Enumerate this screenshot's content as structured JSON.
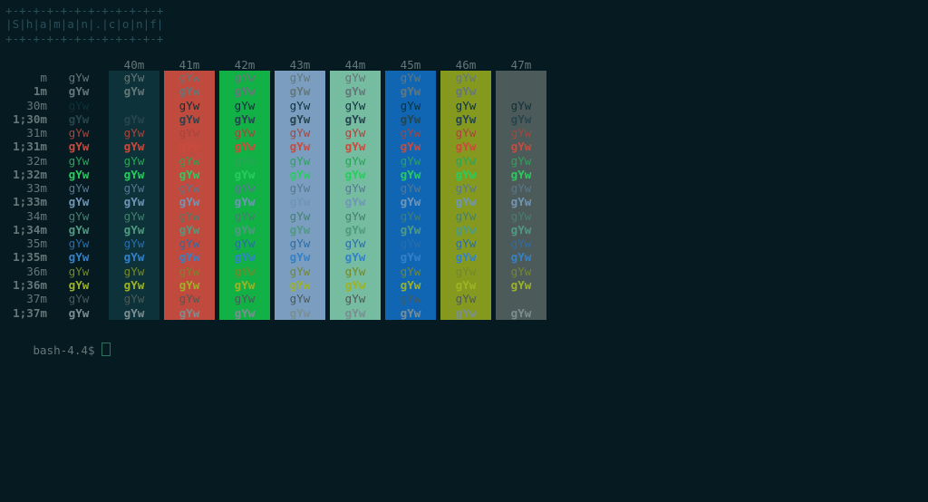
{
  "terminal": {
    "background": "#051a21",
    "banner": {
      "color": "#2a4f58",
      "lines": [
        "+-+-+-+-+-+-+-+-+-+-+-+",
        "|S|h|a|m|a|n|.|c|o|n|f|",
        "+-+-+-+-+-+-+-+-+-+-+-+"
      ]
    },
    "color_table": {
      "cell_text": "gYw",
      "header_color": "#647779",
      "label_color": "#647779",
      "columns": [
        {
          "code": "",
          "bg": ""
        },
        {
          "code": "40m",
          "bg": "#0d323a"
        },
        {
          "code": "41m",
          "bg": "#c04a3e"
        },
        {
          "code": "42m",
          "bg": "#12b146"
        },
        {
          "code": "43m",
          "bg": "#7b9ec0"
        },
        {
          "code": "44m",
          "bg": "#75bca0"
        },
        {
          "code": "45m",
          "bg": "#1166b4"
        },
        {
          "code": "46m",
          "bg": "#85991f"
        },
        {
          "code": "47m",
          "bg": "#4c5a59"
        }
      ],
      "rows": [
        {
          "code": "m",
          "fg": "#647779",
          "bold": false
        },
        {
          "code": "1m",
          "fg": "#647779",
          "bold": true
        },
        {
          "code": "30m",
          "fg": "#0d323a",
          "bold": false
        },
        {
          "code": "1;30m",
          "fg": "#27454e",
          "bold": true
        },
        {
          "code": "31m",
          "fg": "#a7453d",
          "bold": false
        },
        {
          "code": "1;31m",
          "fg": "#cb4a3c",
          "bold": true
        },
        {
          "code": "32m",
          "fg": "#2aa458",
          "bold": false
        },
        {
          "code": "1;32m",
          "fg": "#27cd5d",
          "bold": true
        },
        {
          "code": "33m",
          "fg": "#56788f",
          "bold": false
        },
        {
          "code": "1;33m",
          "fg": "#6f96b5",
          "bold": true
        },
        {
          "code": "34m",
          "fg": "#43806e",
          "bold": false
        },
        {
          "code": "1;34m",
          "fg": "#4f9a80",
          "bold": true
        },
        {
          "code": "35m",
          "fg": "#2a6da8",
          "bold": false
        },
        {
          "code": "1;35m",
          "fg": "#3381c8",
          "bold": true
        },
        {
          "code": "36m",
          "fg": "#74882a",
          "bold": false
        },
        {
          "code": "1;36m",
          "fg": "#9db324",
          "bold": true
        },
        {
          "code": "37m",
          "fg": "#4c5a59",
          "bold": false
        },
        {
          "code": "1;37m",
          "fg": "#7b8e91",
          "bold": true
        }
      ],
      "invisible_cells": [
        [
          0,
          8
        ],
        [
          1,
          8
        ]
      ]
    },
    "prompt": {
      "text": "bash-4.4$",
      "color": "#647779",
      "cursor_color": "#2c7060"
    }
  }
}
